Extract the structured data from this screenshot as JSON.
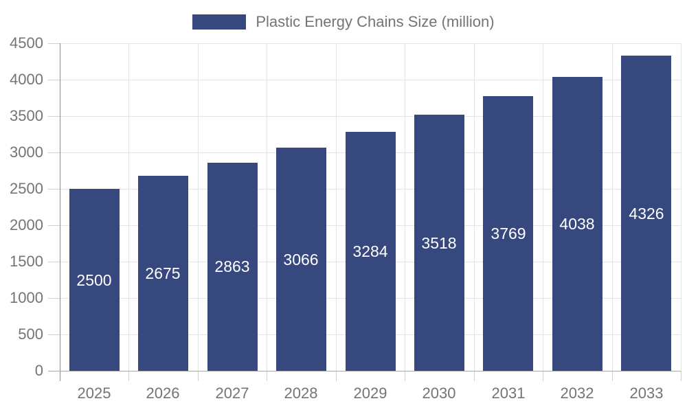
{
  "legend": {
    "label": "Plastic Energy Chains Size (million)"
  },
  "colors": {
    "bar": "#37487F",
    "grid": "#E3E3E8",
    "axis_y": "#8A8A8A",
    "axis_x": "#AAAAAA",
    "tick": "#CFCFCF",
    "text": "#747474",
    "bar_label": "#FFFFFF"
  },
  "chart_data": {
    "type": "bar",
    "title": "Plastic Energy Chains Size (million)",
    "categories": [
      "2025",
      "2026",
      "2027",
      "2028",
      "2029",
      "2030",
      "2031",
      "2032",
      "2033"
    ],
    "values": [
      2500,
      2675,
      2863,
      3066,
      3284,
      3518,
      3769,
      4038,
      4326
    ],
    "series_name": "Plastic Energy Chains Size (million)",
    "xlabel": "",
    "ylabel": "",
    "ylim": [
      0,
      4500
    ],
    "ytick_interval": 500,
    "yticks": [
      0,
      500,
      1000,
      1500,
      2000,
      2500,
      3000,
      3500,
      4000,
      4500
    ],
    "grid": true,
    "legend_position": "top-center",
    "bar_label_position": "inside-middle"
  }
}
